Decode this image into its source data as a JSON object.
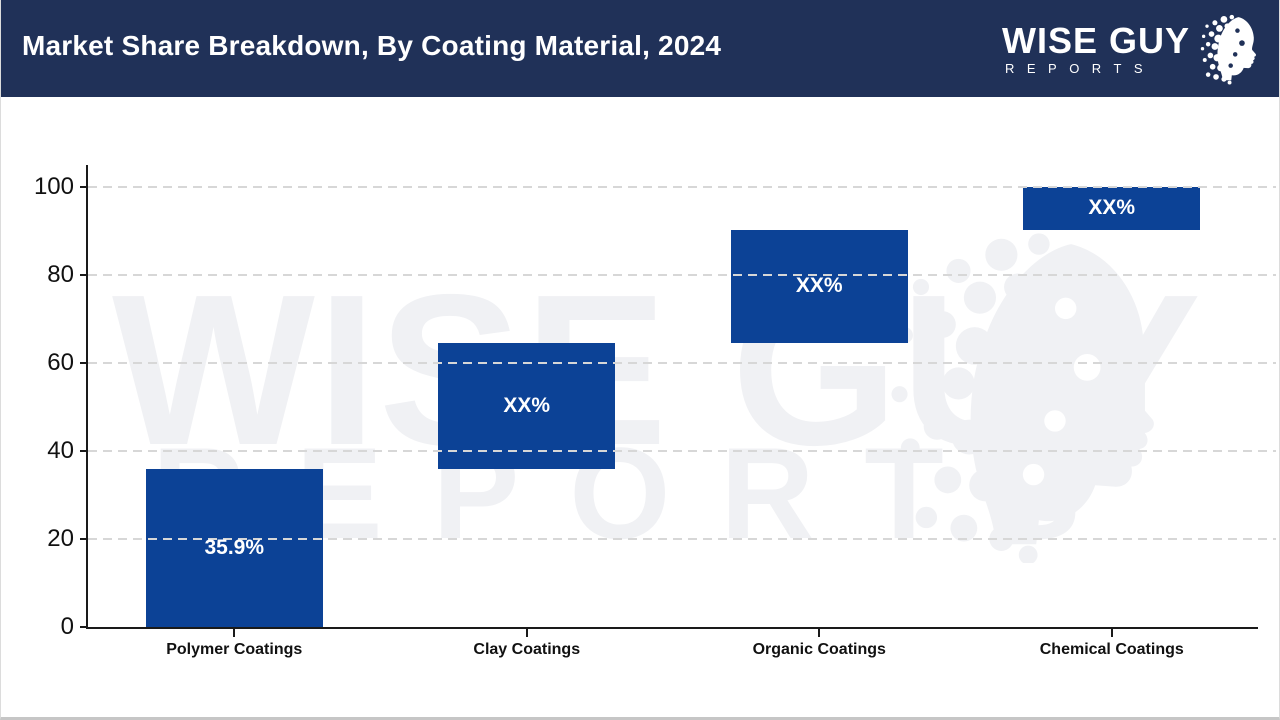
{
  "header": {
    "title": "Market Share Breakdown, By Coating Material, 2024",
    "logo": {
      "line1": "WISE GUY",
      "line2": "REPORTS"
    }
  },
  "watermark": {
    "line1": "WISE GUY",
    "line2": "REPORTS"
  },
  "colors": {
    "header_bg": "#203158",
    "bar": "#0C4296",
    "watermark": "#F0F1F4",
    "gridline": "#D7D7D7",
    "axis": "#1A1A1A"
  },
  "chart_data": {
    "type": "bar",
    "subtype": "waterfall",
    "title": "Market Share Breakdown, By Coating Material, 2024",
    "xlabel": "",
    "ylabel": "",
    "categories": [
      "Polymer Coatings",
      "Clay Coatings",
      "Organic Coatings",
      "Chemical Coatings"
    ],
    "segments": [
      {
        "category": "Polymer Coatings",
        "start": 0,
        "end": 35.9,
        "label": "35.9%"
      },
      {
        "category": "Clay Coatings",
        "start": 35.9,
        "end": 64.5,
        "label": "XX%"
      },
      {
        "category": "Organic Coatings",
        "start": 64.5,
        "end": 90.3,
        "label": "XX%"
      },
      {
        "category": "Chemical Coatings",
        "start": 90.3,
        "end": 100,
        "label": "XX%"
      }
    ],
    "yticks": [
      0,
      20,
      40,
      60,
      80,
      100
    ],
    "ylim": [
      0,
      105
    ],
    "grid": "horizontal-dashed",
    "legend": "none",
    "bar_color": "#0C4296",
    "bar_label_color": "#FFFFFF"
  }
}
